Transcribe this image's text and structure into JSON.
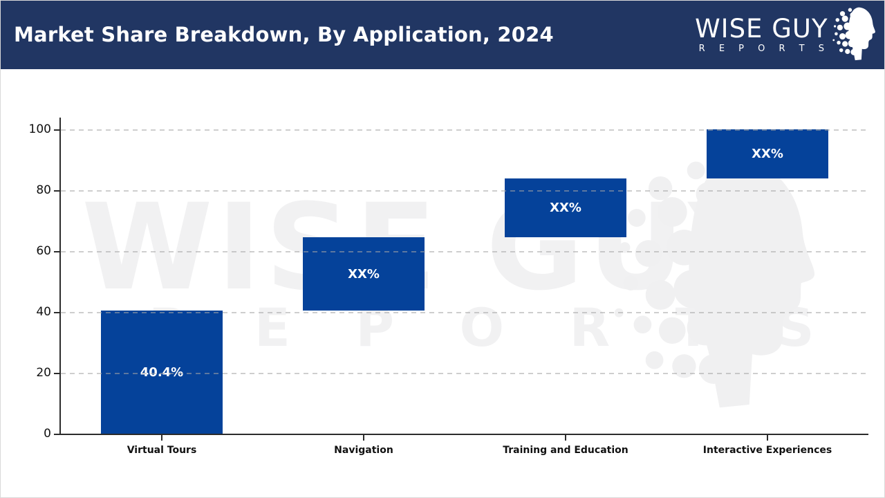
{
  "header": {
    "title": "Market Share Breakdown, By Application, 2024",
    "logo": {
      "line1": "WISE GUY",
      "line2": "R E P O R T S"
    }
  },
  "watermark": {
    "line1": "WISE GUY",
    "line2": "R E P O R T S"
  },
  "chart_data": {
    "type": "bar",
    "subtype": "waterfall",
    "title": "Market Share Breakdown, By Application, 2024",
    "categories": [
      "Virtual Tours",
      "Navigation",
      "Training and Education",
      "Interactive Experiences"
    ],
    "series": [
      {
        "name": "Market Share (%)",
        "segments": [
          {
            "category": "Virtual Tours",
            "start": 0,
            "end": 40.4,
            "label": "40.4%"
          },
          {
            "category": "Navigation",
            "start": 40.4,
            "end": 64.5,
            "label": "XX%"
          },
          {
            "category": "Training and Education",
            "start": 64.5,
            "end": 83.8,
            "label": "XX%"
          },
          {
            "category": "Interactive Experiences",
            "start": 83.8,
            "end": 100,
            "label": "XX%"
          }
        ]
      }
    ],
    "xlabel": "",
    "ylabel": "",
    "ylim": [
      0,
      100
    ],
    "yticks": [
      0,
      20,
      40,
      60,
      80,
      100
    ],
    "grid": "horizontal-dashed",
    "legend": "none"
  },
  "colors": {
    "header_bg": "#213663",
    "bar": "#05429a",
    "bar_label": "#ffffff",
    "axis": "#2b2b2b",
    "grid": "#c9c9c9",
    "frame_border": "#d9d9d9",
    "watermark": "#f1f1f2"
  }
}
